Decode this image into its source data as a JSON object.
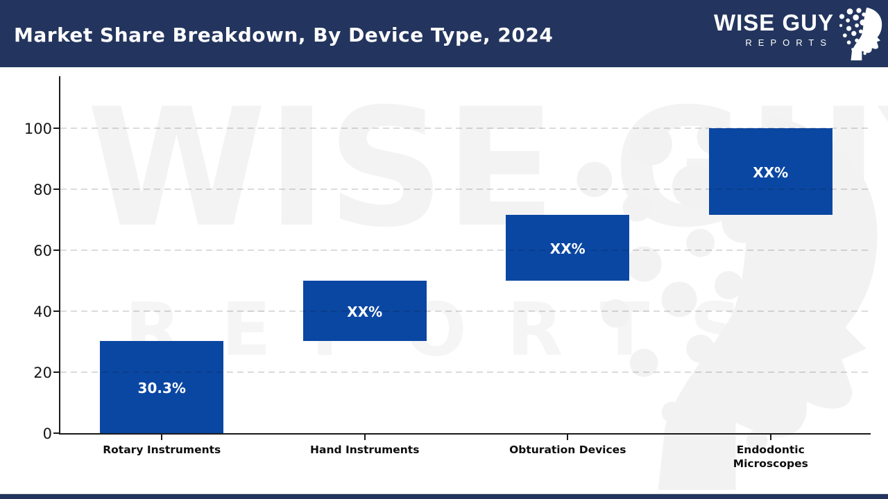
{
  "header": {
    "title": "Market Share Breakdown, By Device Type, 2024",
    "logo": {
      "line1": "WISE GUY",
      "line2": "REPORTS"
    }
  },
  "watermark": {
    "line1": "WISE GUY",
    "line2": "REPORTS"
  },
  "colors": {
    "header_bg": "#23355e",
    "bar_fill": "#0a47a3",
    "bar_label_text": "#ffffff",
    "axis": "#1a1a1a",
    "gridline": "#d9d9d9",
    "watermark": "#f3f3f3",
    "title_text": "#ffffff",
    "tick_text": "#151515"
  },
  "chart_data": {
    "type": "bar",
    "subtype": "waterfall",
    "title": "Market Share Breakdown, By Device Type, 2024",
    "categories": [
      "Rotary Instruments",
      "Hand Instruments",
      "Obturation Devices",
      "Endodontic\nMicroscopes"
    ],
    "series": [
      {
        "name": "Market Share",
        "segments": [
          {
            "category": "Rotary Instruments",
            "start": 0,
            "end": 30.3,
            "value": 30.3,
            "label": "30.3%"
          },
          {
            "category": "Hand Instruments",
            "start": 30.3,
            "end": 50.0,
            "value": 19.7,
            "label": "XX%"
          },
          {
            "category": "Obturation Devices",
            "start": 50.0,
            "end": 71.6,
            "value": 21.6,
            "label": "XX%"
          },
          {
            "category": "Endodontic Microscopes",
            "start": 71.6,
            "end": 100.0,
            "value": 28.4,
            "label": "XX%"
          }
        ]
      }
    ],
    "xlabel": "",
    "ylabel": "",
    "ylim": [
      0,
      105
    ],
    "yticks": [
      0,
      20,
      40,
      60,
      80,
      100
    ],
    "grid": "horizontal-dashed",
    "legend": "none"
  }
}
